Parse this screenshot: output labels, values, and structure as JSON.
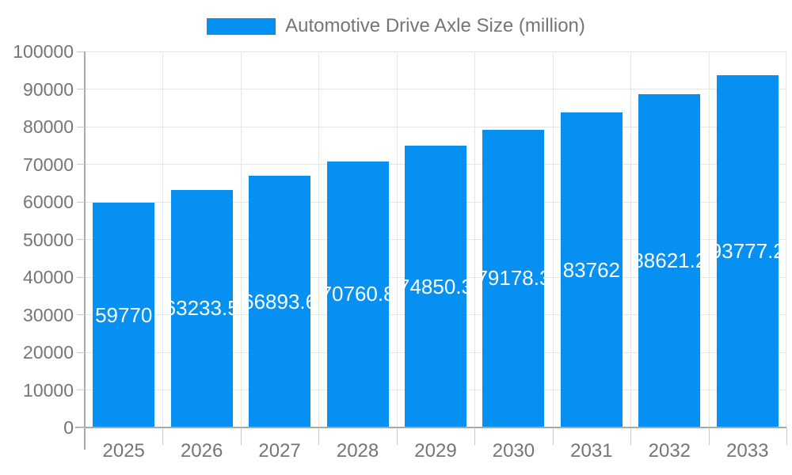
{
  "legend": {
    "label": "Automotive Drive Axle Size (million)"
  },
  "chart_data": {
    "type": "bar",
    "title": "Automotive Drive Axle Size (million)",
    "categories": [
      "2025",
      "2026",
      "2027",
      "2028",
      "2029",
      "2030",
      "2031",
      "2032",
      "2033"
    ],
    "values": [
      59770,
      63233.5,
      66893.6,
      70760.8,
      74850.3,
      79178.3,
      83762,
      88621.2,
      93777.2
    ],
    "bar_labels": [
      "59770",
      "63233.5",
      "66893.6",
      "70760.8",
      "74850.3",
      "79178.3",
      "83762",
      "88621.2",
      "93777.2"
    ],
    "xlabel": "",
    "ylabel": "",
    "ylim": [
      0,
      100000
    ],
    "ytick_step": 10000,
    "yticks": [
      "0",
      "10000",
      "20000",
      "30000",
      "40000",
      "50000",
      "60000",
      "70000",
      "80000",
      "90000",
      "100000"
    ],
    "grid": true,
    "legend_position": "top",
    "colors": {
      "bar": "#0590f2",
      "grid": "#e6e6e6",
      "axis": "#a8a8a8",
      "tick": "#c9c9c9",
      "text": "#757575",
      "bar_label": "#ffffff"
    }
  }
}
